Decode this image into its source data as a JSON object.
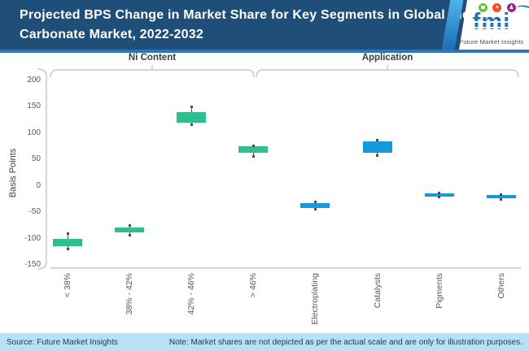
{
  "header": {
    "title_line1": "Projected BPS Change in Market Share for Key Segments in Global Nickel",
    "title_line2": "Carbonate  Market, 2022-2032",
    "logo": {
      "brand": "fmi",
      "tagline": "Future Market Insights"
    }
  },
  "colors": {
    "header_bg": "#1F4E79",
    "accent_line": "#2E75B6",
    "footer_bg": "#B9E1F3",
    "brand_blue": "#1B75BB"
  },
  "chart_data": {
    "type": "boxplot",
    "title": "Projected BPS Change in Market Share for Key Segments in Global Nickel Carbonate Market, 2022-2032",
    "ylabel": "Basis Points",
    "ylim": [
      -150,
      200
    ],
    "yticks": [
      200,
      150,
      100,
      50,
      0,
      -50,
      -100,
      -150
    ],
    "grid": false,
    "legend_position": "none",
    "groups": [
      {
        "label": "Ni Content",
        "color": "#2FBE8F",
        "categories": [
          "< 38%",
          "38% - 42%",
          "42% - 46%",
          "> 46%"
        ]
      },
      {
        "label": "Application",
        "color": "#1499DA",
        "categories": [
          "Electroplating",
          "Catalysts",
          "Pigments",
          "Others"
        ]
      }
    ],
    "points": [
      {
        "category": "< 38%",
        "group": "Ni Content",
        "high": -90,
        "box_top": -100,
        "box_bottom": -115,
        "low": -120
      },
      {
        "category": "38% - 42%",
        "group": "Ni Content",
        "high": -75,
        "box_top": -79,
        "box_bottom": -89,
        "low": -93
      },
      {
        "category": "42% - 46%",
        "group": "Ni Content",
        "high": 150,
        "box_top": 140,
        "box_bottom": 120,
        "low": 116
      },
      {
        "category": "> 46%",
        "group": "Ni Content",
        "high": 76,
        "box_top": 75,
        "box_bottom": 62,
        "low": 56
      },
      {
        "category": "Electroplating",
        "group": "Application",
        "high": -30,
        "box_top": -33,
        "box_bottom": -42,
        "low": -45
      },
      {
        "category": "Catalysts",
        "group": "Application",
        "high": 87,
        "box_top": 84,
        "box_bottom": 62,
        "low": 58
      },
      {
        "category": "Pigments",
        "group": "Application",
        "high": -13,
        "box_top": -15,
        "box_bottom": -20,
        "low": -22
      },
      {
        "category": "Others",
        "group": "Application",
        "high": -16,
        "box_top": -18,
        "box_bottom": -24,
        "low": -26
      }
    ]
  },
  "footer": {
    "source": "Source: Future Market Insights",
    "note": "Note: Market shares are not depicted as per the actual scale and are only for illustration purposes."
  }
}
